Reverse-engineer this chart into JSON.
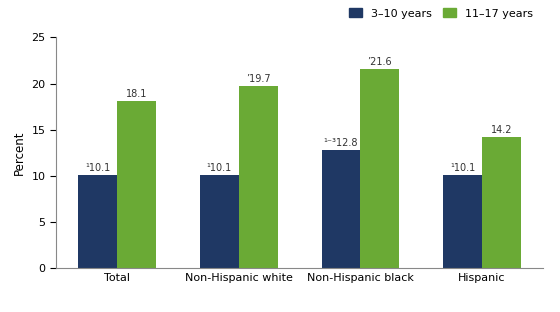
{
  "categories": [
    "Total",
    "Non-Hispanic white",
    "Non-Hispanic black",
    "Hispanic"
  ],
  "series": [
    {
      "label": "3–10 years",
      "values": [
        10.1,
        10.1,
        12.8,
        10.1
      ],
      "annotations": [
        "¹10.1",
        "¹10.1",
        "¹⁻³12.8",
        "¹10.1"
      ],
      "color": "#1f3864"
    },
    {
      "label": "11–17 years",
      "values": [
        18.1,
        19.7,
        21.6,
        14.2
      ],
      "annotations": [
        "18.1",
        "’19.7",
        "’21.6",
        "14.2"
      ],
      "color": "#6aaa35"
    }
  ],
  "ylabel": "Percent",
  "ylim": [
    0,
    25
  ],
  "yticks": [
    0,
    5,
    10,
    15,
    20,
    25
  ],
  "bar_width": 0.32,
  "background_color": "#ffffff",
  "label_fontsize": 7.0,
  "axis_fontsize": 8.5,
  "tick_fontsize": 8.0,
  "legend_fontsize": 8.0,
  "ann_dark_color": "#333333"
}
